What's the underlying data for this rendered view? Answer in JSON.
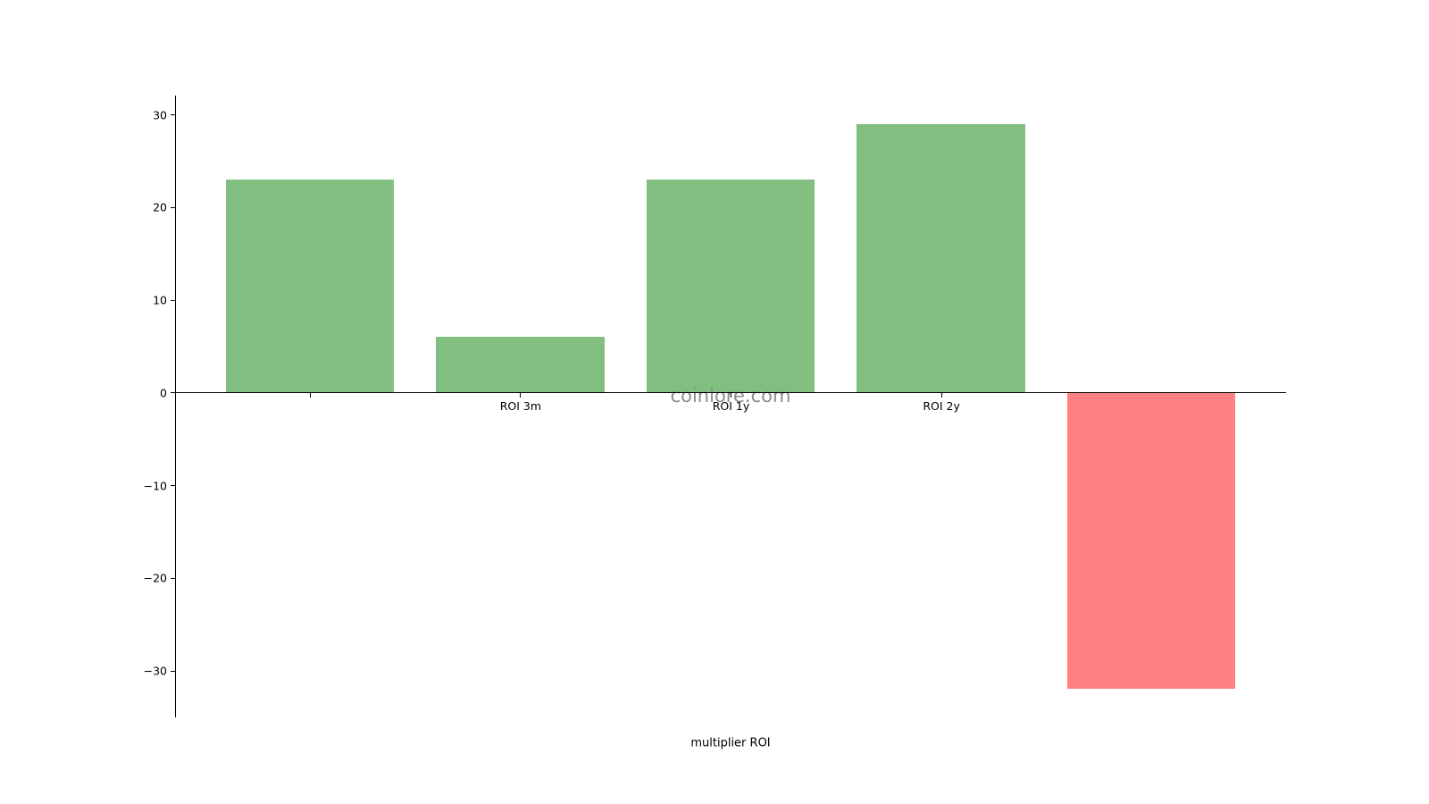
{
  "watermark_text": "coinlore.com",
  "chart_data": {
    "type": "bar",
    "title": "",
    "xlabel": "multiplier ROI",
    "ylabel": "",
    "categories": [
      "",
      "ROI 3m",
      "ROI 1y",
      "ROI 2y",
      ""
    ],
    "values": [
      23,
      6,
      23,
      29,
      -32
    ],
    "xticks": [
      {
        "pos": 0,
        "label": ""
      },
      {
        "pos": 1,
        "label": "ROI 3m"
      },
      {
        "pos": 2,
        "label": "ROI 1y"
      },
      {
        "pos": 3,
        "label": "ROI 2y"
      }
    ],
    "yticks": [
      30,
      20,
      10,
      0,
      -10,
      -20,
      -30
    ],
    "ylim": [
      -35.05,
      32.05
    ],
    "xlim": [
      -0.64,
      4.64
    ],
    "bar_width_units": 0.8,
    "grid": false,
    "legend": null,
    "positive_color": "#80bf80",
    "negative_color": "#ff8080",
    "axis_color": "#000000",
    "watermark": "coinlore.com"
  }
}
